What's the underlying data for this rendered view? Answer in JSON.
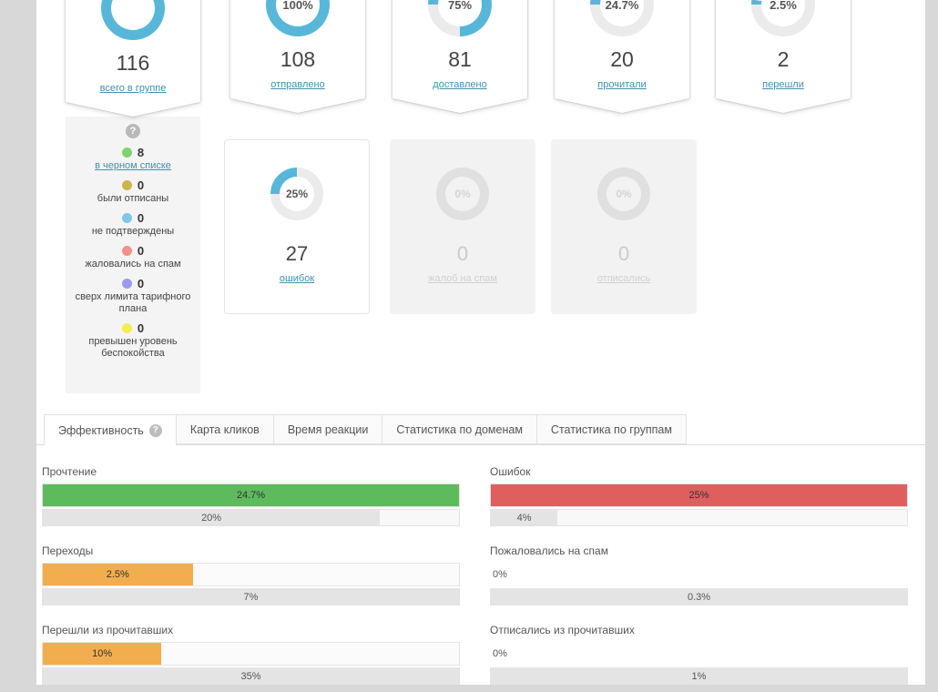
{
  "colors": {
    "page_bg": "#d8d8d8",
    "panel_bg": "#ffffff",
    "accent_blue": "#58b7d9",
    "donut_track": "#ebebeb",
    "donut_track_inactive": "#e0e0e0",
    "link": "#4190b0",
    "green": "#5dba5d",
    "red": "#df5e5e",
    "orange": "#f2ad4e",
    "avg_fill": "#e4e4e4"
  },
  "top_cards": [
    {
      "percent": "",
      "value": "116",
      "label": "всего в группе",
      "pct": 100
    },
    {
      "percent": "100%",
      "value": "108",
      "label": "отправлено",
      "pct": 100
    },
    {
      "percent": "75%",
      "value": "81",
      "label": "доставлено",
      "pct": 75
    },
    {
      "percent": "24.7%",
      "value": "20",
      "label": "прочитали",
      "pct": 24.7
    },
    {
      "percent": "2.5%",
      "value": "2",
      "label": "перешли",
      "pct": 2.5
    }
  ],
  "blacklist_panel": {
    "help_icon": "?",
    "items": [
      {
        "value": "8",
        "label": "в черном списке",
        "dot_color": "#7ed36f"
      },
      {
        "value": "0",
        "label": "были отписаны",
        "dot_color": "#cdb44c"
      },
      {
        "value": "0",
        "label": "не подтверждены",
        "dot_color": "#82c7ea"
      },
      {
        "value": "0",
        "label": "жаловались на спам",
        "dot_color": "#f4908a"
      },
      {
        "value": "0",
        "label": "сверх лимита тарифного плана",
        "dot_color": "#9b9bed"
      },
      {
        "value": "0",
        "label": "превышен уровень беспокойства",
        "dot_color": "#f6ec52"
      }
    ]
  },
  "mid_cards": [
    {
      "percent": "25%",
      "value": "27",
      "label": "ошибок",
      "pct": 25
    },
    {
      "percent": "0%",
      "value": "0",
      "label": "жалоб на спам",
      "pct": 0
    },
    {
      "percent": "0%",
      "value": "0",
      "label": "отписались",
      "pct": 0
    }
  ],
  "tabs": [
    {
      "label": "Эффективность",
      "help": "?"
    },
    {
      "label": "Карта кликов"
    },
    {
      "label": "Время реакции"
    },
    {
      "label": "Статистика по доменам"
    },
    {
      "label": "Статистика по группам"
    }
  ],
  "chart_data": {
    "type": "bar",
    "title": "Эффективность рассылки: значение кампании против среднего",
    "legend_position": "none",
    "columns": [
      {
        "metrics": [
          {
            "label": "Прочтение",
            "value": 24.7,
            "value_text": "24.7%",
            "avg": 20,
            "avg_text": "20%",
            "color": "#5dba5d",
            "value_width": 100,
            "avg_width": 81
          },
          {
            "label": "Переходы",
            "value": 2.5,
            "value_text": "2.5%",
            "avg": 7,
            "avg_text": "7%",
            "color": "#f2ad4e",
            "value_width": 36,
            "avg_width": 100
          },
          {
            "label": "Перешли из прочитавших",
            "value": 10,
            "value_text": "10%",
            "avg": 35,
            "avg_text": "35%",
            "color": "#f2ad4e",
            "value_width": 28.5,
            "avg_width": 100
          }
        ]
      },
      {
        "metrics": [
          {
            "label": "Ошибок",
            "value": 25,
            "value_text": "25%",
            "avg": 4,
            "avg_text": "4%",
            "color": "#df5e5e",
            "value_width": 100,
            "avg_width": 16
          },
          {
            "label": "Пожаловались на спам",
            "value": 0,
            "value_text": "0%",
            "avg": 0.3,
            "avg_text": "0.3%",
            "color": "#f2ad4e",
            "value_width": 0,
            "avg_width": 100
          },
          {
            "label": "Отписались из прочитавших",
            "value": 0,
            "value_text": "0%",
            "avg": 1,
            "avg_text": "1%",
            "color": "#f2ad4e",
            "value_width": 0,
            "avg_width": 100
          }
        ]
      }
    ]
  }
}
